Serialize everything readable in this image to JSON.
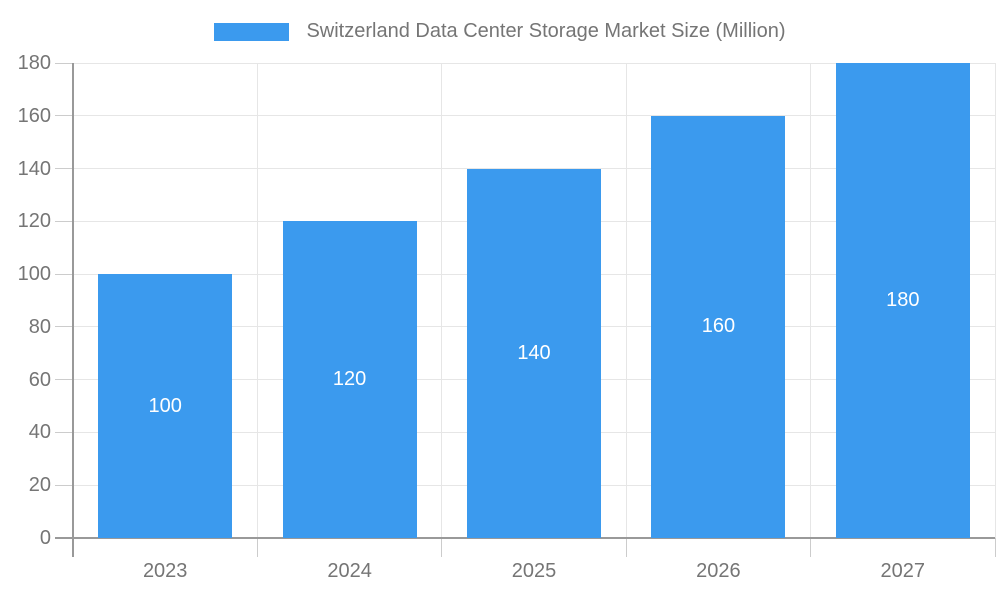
{
  "chart_data": {
    "type": "bar",
    "title": "Switzerland Data Center Storage Market Size (Million)",
    "categories": [
      "2023",
      "2024",
      "2025",
      "2026",
      "2027"
    ],
    "series": [
      {
        "name": "Switzerland Data Center Storage Market Size (Million)",
        "values": [
          100,
          120,
          140,
          160,
          180
        ]
      }
    ],
    "bar_labels": [
      "100",
      "120",
      "140",
      "160",
      "180"
    ],
    "xlabel": "",
    "ylabel": "",
    "ylim": [
      0,
      180
    ],
    "ytick_step": 20,
    "ytick_labels": [
      "0",
      "20",
      "40",
      "60",
      "80",
      "100",
      "120",
      "140",
      "160",
      "180"
    ],
    "grid": true,
    "legend_position": "top-center",
    "colors": {
      "bar": "#3B9AEE",
      "label_text": "#ffffff",
      "axis_text": "#757575",
      "axis_line": "#999999",
      "gridline": "#e6e6e6",
      "tick": "#cccccc",
      "background": "#ffffff"
    }
  }
}
